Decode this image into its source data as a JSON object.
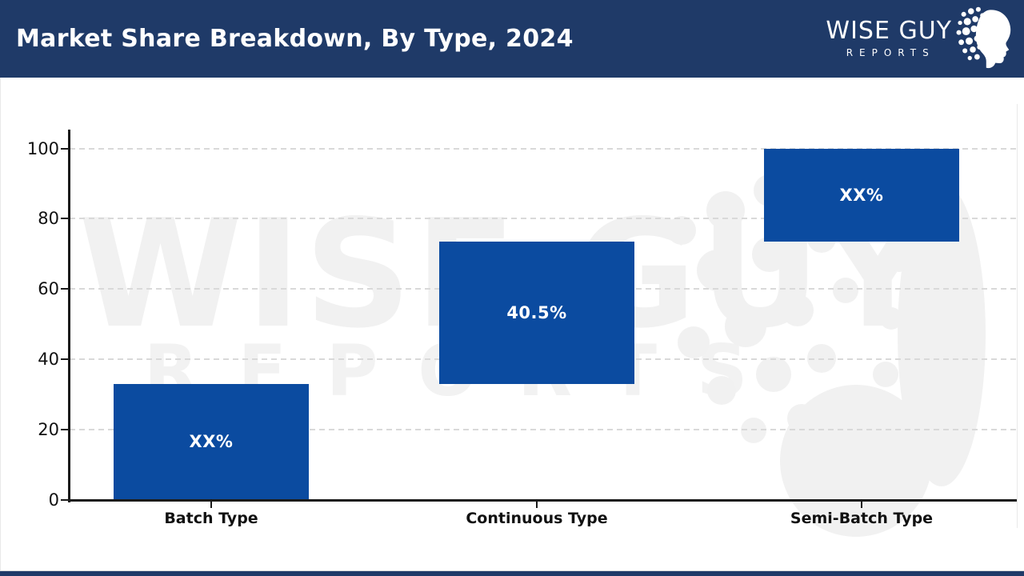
{
  "header": {
    "title": "Market Share Breakdown, By Type, 2024",
    "logo": {
      "wordmark": "WISE GUY",
      "tagline": "REPORTS"
    }
  },
  "watermark": {
    "line1": "WISE GUY",
    "line2": "REPORTS"
  },
  "chart_data": {
    "type": "bar",
    "subtype": "stacked-progression-waterfall",
    "title": "Market Share Breakdown, By Type, 2024",
    "categories": [
      "Batch Type",
      "Continuous Type",
      "Semi-Batch Type"
    ],
    "segments": [
      {
        "category": "Batch Type",
        "start": 0,
        "end": 33,
        "value_label": "XX%"
      },
      {
        "category": "Continuous Type",
        "start": 33,
        "end": 73.5,
        "value_label": "40.5%"
      },
      {
        "category": "Semi-Batch Type",
        "start": 73.5,
        "end": 100,
        "value_label": "XX%"
      }
    ],
    "yticks": [
      0,
      20,
      40,
      60,
      80,
      100
    ],
    "ylim": [
      0,
      105
    ],
    "xlabel": "",
    "ylabel": "",
    "grid": "horizontal-dashed",
    "legend": "none",
    "bar_color": "#0b4ba0"
  },
  "colors": {
    "header_bg": "#1f3a68",
    "bar": "#0b4ba0",
    "grid": "#d9d9d9",
    "axis": "#1a1a1a",
    "watermark": "#f1f1f1",
    "title_text": "#ffffff",
    "tick_text": "#111111"
  }
}
